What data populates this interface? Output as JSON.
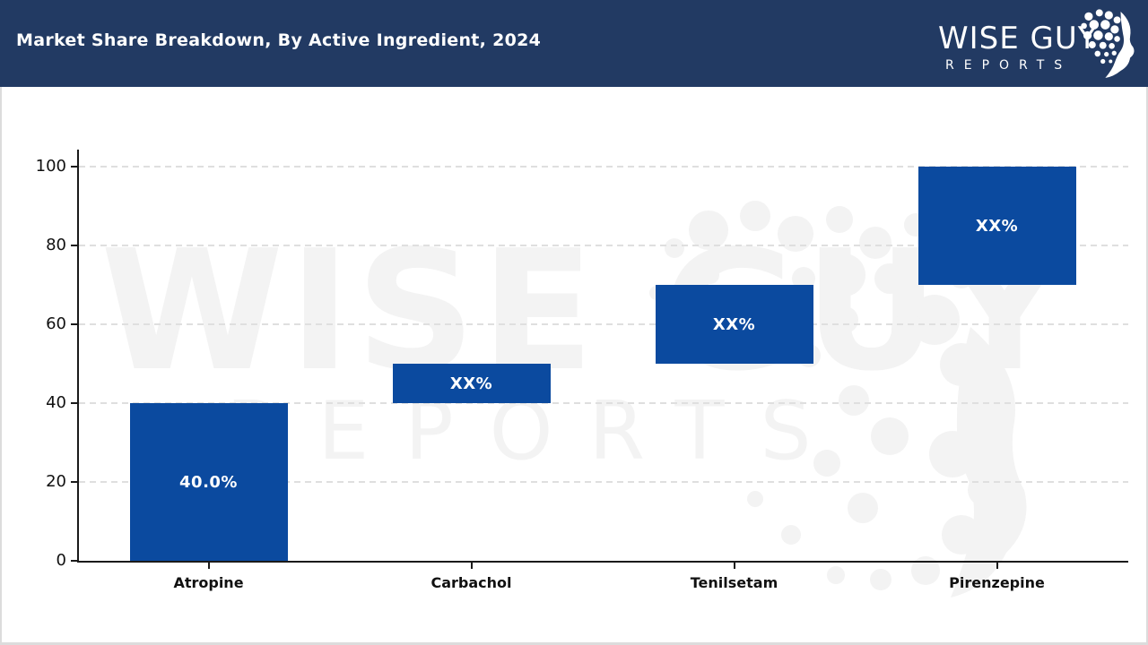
{
  "header": {
    "title": "Market Share Breakdown, By Active Ingredient, 2024",
    "logo": {
      "wordmark": "WISE GUY",
      "sub": "REPORTS"
    }
  },
  "watermark": {
    "wordmark": "WISE GUY",
    "sub": "REPORTS"
  },
  "chart_data": {
    "type": "bar",
    "variant": "waterfall",
    "title": "Market Share Breakdown, By Active Ingredient, 2024",
    "categories": [
      "Atropine",
      "Carbachol",
      "Tenilsetam",
      "Pirenzepine"
    ],
    "segments": [
      {
        "category": "Atropine",
        "start": 0,
        "end": 40,
        "label": "40.0%"
      },
      {
        "category": "Carbachol",
        "start": 40,
        "end": 50,
        "label": "XX%"
      },
      {
        "category": "Tenilsetam",
        "start": 50,
        "end": 70,
        "label": "XX%"
      },
      {
        "category": "Pirenzepine",
        "start": 70,
        "end": 100,
        "label": "XX%"
      }
    ],
    "xlabel": "",
    "ylabel": "",
    "ylim": [
      0,
      100
    ],
    "yticks": [
      0,
      20,
      40,
      60,
      80,
      100
    ],
    "grid": "dashed-horizontal",
    "legend": "none",
    "bar_color": "#0b4a9f",
    "bar_label_color": "#ffffff"
  },
  "colors": {
    "header_bg": "#223a63",
    "bar": "#0b4a9f",
    "axis": "#1a1a1a",
    "grid": "#dfdfdf",
    "watermark": "#f3f3f3",
    "page_bg": "#ffffff"
  }
}
